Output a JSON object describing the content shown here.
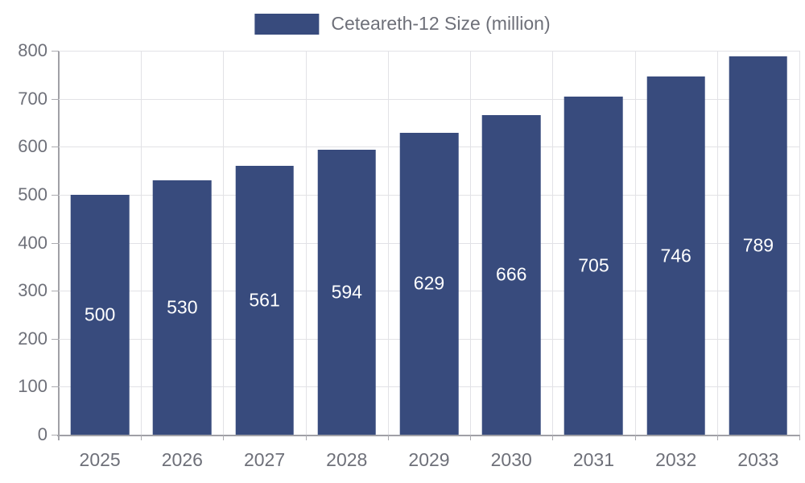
{
  "chart_data": {
    "type": "bar",
    "title": "",
    "categories": [
      "2025",
      "2026",
      "2027",
      "2028",
      "2029",
      "2030",
      "2031",
      "2032",
      "2033"
    ],
    "series": [
      {
        "name": "Ceteareth-12 Size (million)",
        "values": [
          500,
          530,
          561,
          594,
          629,
          666,
          705,
          746,
          789
        ],
        "color": "#384B7D"
      }
    ],
    "xlabel": "",
    "ylabel": "",
    "ylim": [
      0,
      800
    ],
    "ytick_step": 100,
    "grid": true,
    "legend_position": "top-center",
    "value_labels_position": "inside-center",
    "value_label_color": "#ffffff",
    "axis_text_color": "#6E7079",
    "grid_color": "#E2E2E6",
    "axis_line_color": "#A0A0A6"
  }
}
